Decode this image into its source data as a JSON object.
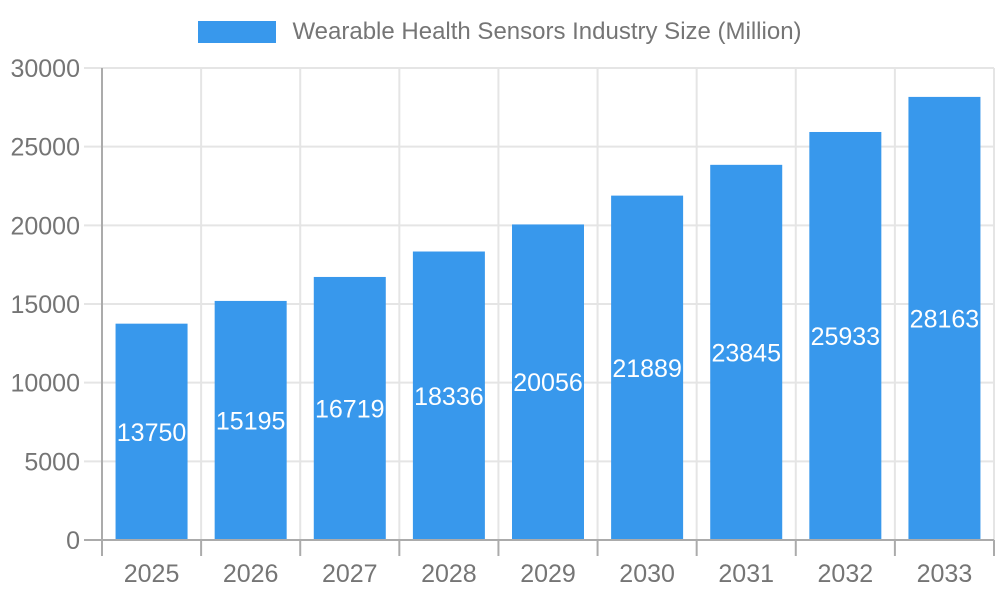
{
  "legend": {
    "label": "Wearable Health Sensors Industry Size (Million)"
  },
  "colors": {
    "bar": "#3898EC",
    "axis_line": "#ABABAB",
    "gridline": "#E5E5E5",
    "tick_text": "#757575",
    "value_label_text": "#FFFFFF",
    "background": "#FFFFFF"
  },
  "chart_data": {
    "type": "bar",
    "title": "Wearable Health Sensors Industry Size (Million)",
    "categories": [
      "2025",
      "2026",
      "2027",
      "2028",
      "2029",
      "2030",
      "2031",
      "2032",
      "2033"
    ],
    "values": [
      13750,
      15195,
      16719,
      18336,
      20056,
      21889,
      23845,
      25933,
      28163
    ],
    "series": [
      {
        "name": "Wearable Health Sensors Industry Size (Million)",
        "values": [
          13750,
          15195,
          16719,
          18336,
          20056,
          21889,
          23845,
          25933,
          28163
        ]
      }
    ],
    "xlabel": "",
    "ylabel": "",
    "ylim": [
      0,
      30000
    ],
    "yticks": [
      0,
      5000,
      10000,
      15000,
      20000,
      25000,
      30000
    ],
    "grid": true,
    "legend_position": "top",
    "value_label_position": "inside-center"
  }
}
